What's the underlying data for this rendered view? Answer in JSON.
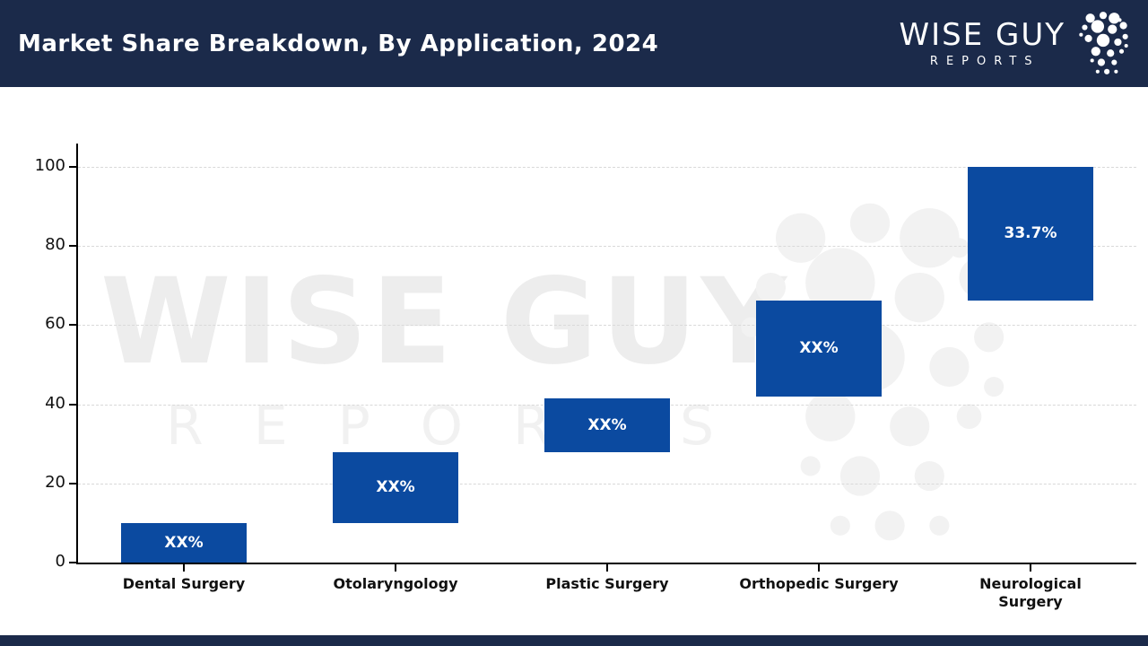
{
  "header": {
    "title": "Market Share Breakdown, By Application, 2024",
    "logo_line1": "WISE GUY",
    "logo_line2": "REPORTS"
  },
  "watermark": {
    "line1": "WISE GUY",
    "line2": "REPORTS"
  },
  "colors": {
    "header_bg": "#1b2a4a",
    "bar": "#0b4aa0",
    "grid": "#d9d9d9",
    "watermark": "#ededed"
  },
  "chart_data": {
    "type": "bar",
    "subtype": "waterfall",
    "title": "Market Share Breakdown, By Application, 2024",
    "categories": [
      "Dental Surgery",
      "Otolaryngology",
      "Plastic Surgery",
      "Orthopedic Surgery",
      "Neurological Surgery"
    ],
    "tick_labels": [
      "Dental Surgery",
      "Otolaryngology",
      "Plastic Surgery",
      "Orthopedic Surgery",
      "Neurological\nSurgery"
    ],
    "segments": [
      {
        "category": "Dental Surgery",
        "start": 0,
        "end": 10,
        "label": "XX%"
      },
      {
        "category": "Otolaryngology",
        "start": 10,
        "end": 28,
        "label": "XX%"
      },
      {
        "category": "Plastic Surgery",
        "start": 28,
        "end": 41.5,
        "label": "XX%"
      },
      {
        "category": "Orthopedic Surgery",
        "start": 42,
        "end": 66.3,
        "label": "XX%"
      },
      {
        "category": "Neurological Surgery",
        "start": 66.3,
        "end": 100,
        "label": "33.7%"
      }
    ],
    "yticks": [
      0,
      20,
      40,
      60,
      80,
      100
    ],
    "ylim": [
      0,
      100
    ],
    "grid": "horizontal-dashed",
    "legend": "none"
  }
}
